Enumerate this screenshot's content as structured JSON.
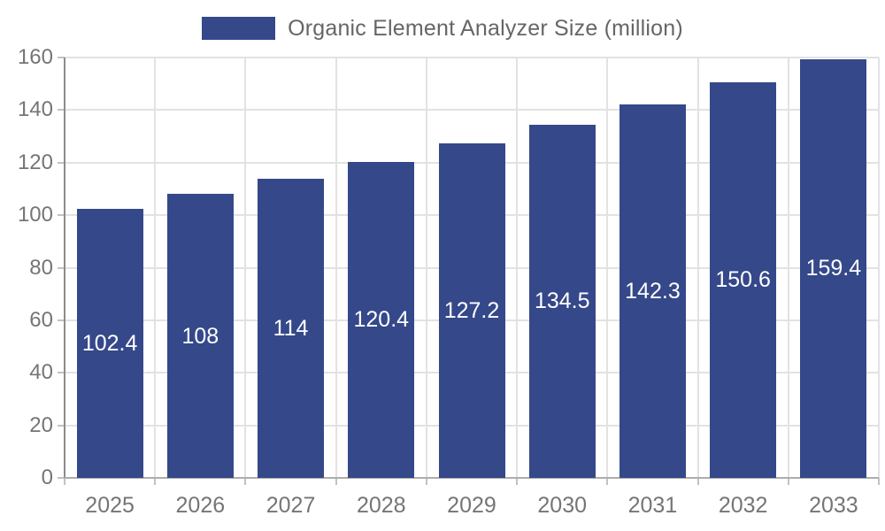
{
  "chart_data": {
    "type": "bar",
    "title": "Organic Element Analyzer Size (million)",
    "categories": [
      "2025",
      "2026",
      "2027",
      "2028",
      "2029",
      "2030",
      "2031",
      "2032",
      "2033"
    ],
    "values": [
      102.4,
      108,
      114,
      120.4,
      127.2,
      134.5,
      142.3,
      150.6,
      159.4
    ],
    "value_labels": [
      "102.4",
      "108",
      "114",
      "120.4",
      "127.2",
      "134.5",
      "142.3",
      "150.6",
      "159.4"
    ],
    "yticks": [
      0,
      20,
      40,
      60,
      80,
      100,
      120,
      140,
      160
    ],
    "ylim": [
      0,
      160
    ],
    "xlabel": "",
    "ylabel": "",
    "grid": true,
    "legend_position": "top",
    "colors": {
      "bar": "#35488A",
      "value_label": "#FFFFFF",
      "axis_text": "#757575",
      "legend_text": "#666666",
      "grid": "#E2E2E2"
    }
  }
}
